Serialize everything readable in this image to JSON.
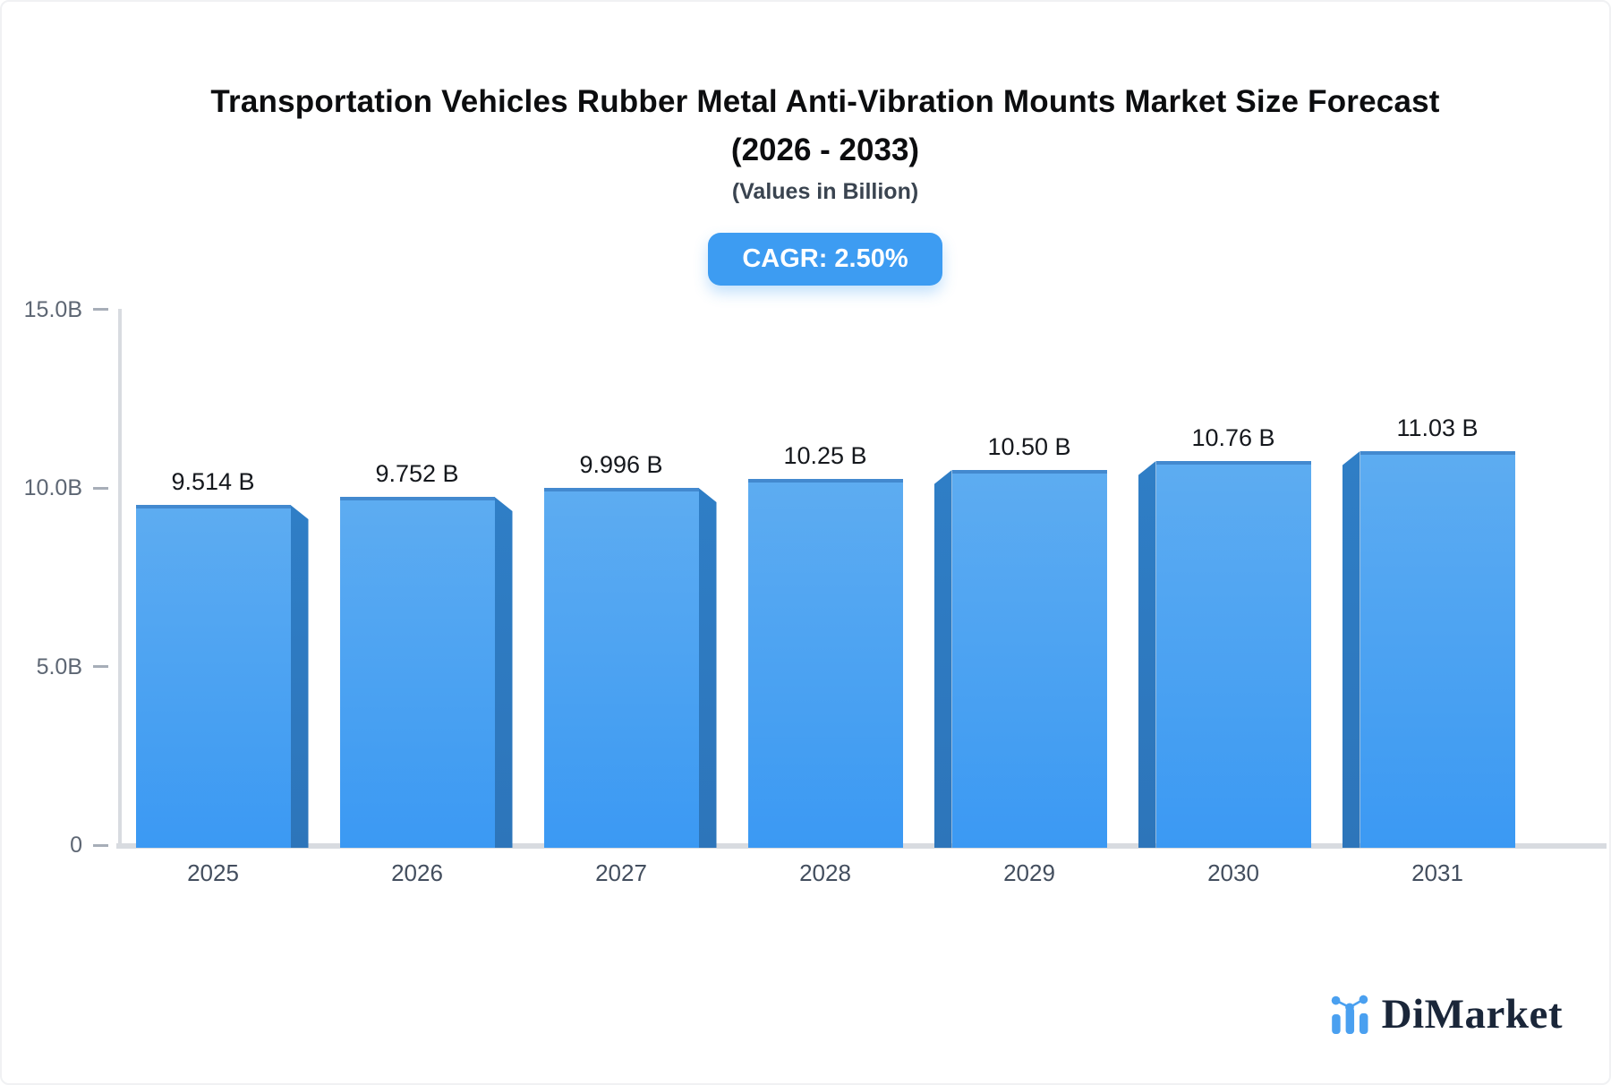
{
  "header": {
    "title_line1": "Transportation Vehicles Rubber Metal Anti-Vibration Mounts Market Size Forecast",
    "title_line2": "(2026 - 2033)",
    "subtitle": "(Values in Billion)",
    "cagr_badge": "CAGR: 2.50%"
  },
  "chart_data": {
    "type": "bar",
    "title": "Transportation Vehicles Rubber Metal Anti-Vibration Mounts Market Size Forecast (2026 - 2033)",
    "subtitle": "(Values in Billion)",
    "categories": [
      "2025",
      "2026",
      "2027",
      "2028",
      "2029",
      "2030",
      "2031"
    ],
    "values": [
      9.514,
      9.752,
      9.996,
      10.25,
      10.5,
      10.76,
      11.03
    ],
    "value_labels": [
      "9.514 B",
      "9.752 B",
      "9.996 B",
      "10.25 B",
      "10.50 B",
      "10.76 B",
      "11.03 B"
    ],
    "unit": "Billion",
    "ylim": [
      0,
      15
    ],
    "yticks": [
      {
        "value": 15,
        "label": "15.0B"
      },
      {
        "value": 10,
        "label": "10.0B"
      },
      {
        "value": 5,
        "label": "5.0B"
      },
      {
        "value": 0,
        "label": "0"
      }
    ],
    "grid": "off",
    "legend": "none",
    "bar_style": "3d-center-perspective"
  },
  "logo": {
    "text": "DiMarket",
    "icon": "bar-chart-logo-icon"
  },
  "colors": {
    "badge_bg": "#3d9cf2",
    "bar_face_top": "#5dacf1",
    "bar_face_bottom": "#3b99f3",
    "bar_top_edge": "#4389cf",
    "bar_side": "#2f7ec6",
    "axis_line": "#d8dbe0",
    "tick": "#a7aeb8",
    "y_label": "#5d6673",
    "x_label": "#434e5e",
    "logo_text": "#1a2639",
    "logo_icon": "#4aa0f0"
  }
}
